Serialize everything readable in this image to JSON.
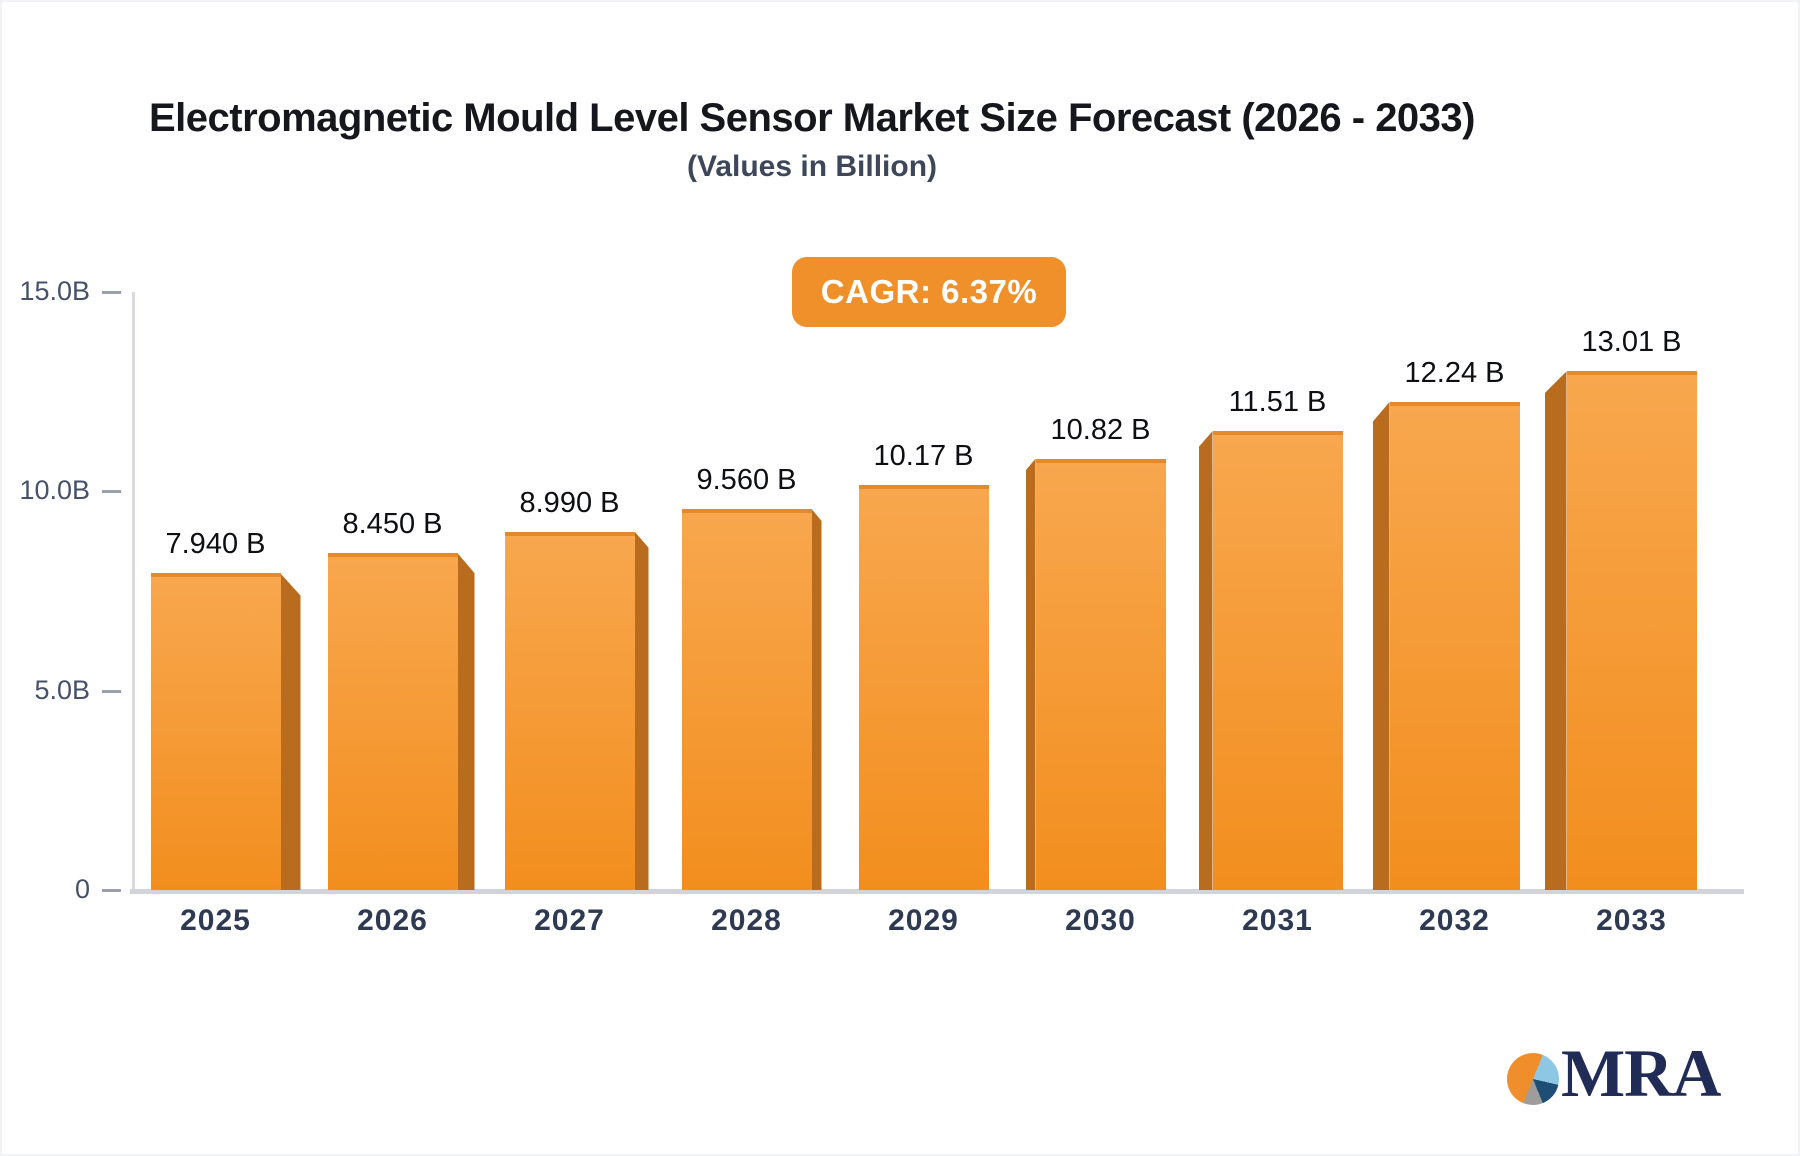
{
  "header": {
    "title": "Electromagnetic Mould Level Sensor Market Size Forecast (2026 - 2033)",
    "subtitle": "(Values in Billion)"
  },
  "badge": {
    "label": "CAGR: 6.37%",
    "color": "#f0902a"
  },
  "chart_data": {
    "type": "bar",
    "title": "Electromagnetic Mould Level Sensor Market Size Forecast (2026 - 2033)",
    "subtitle": "(Values in Billion)",
    "categories": [
      "2025",
      "2026",
      "2027",
      "2028",
      "2029",
      "2030",
      "2031",
      "2032",
      "2033"
    ],
    "values": [
      7.94,
      8.45,
      8.99,
      9.56,
      10.17,
      10.82,
      11.51,
      12.24,
      13.01
    ],
    "value_labels": [
      "7.940 B",
      "8.450 B",
      "8.990 B",
      "9.560 B",
      "10.17 B",
      "10.82 B",
      "11.51 B",
      "12.24 B",
      "13.01 B"
    ],
    "xlabel": "",
    "ylabel": "",
    "ylim": [
      0,
      15
    ],
    "yticks": [
      {
        "v": 0,
        "label": "0"
      },
      {
        "v": 5,
        "label": "5.0B"
      },
      {
        "v": 10,
        "label": "10.0B"
      },
      {
        "v": 15,
        "label": "15.0B"
      }
    ],
    "grid": false,
    "legend": false,
    "colors": {
      "bar_top": "#f8a74e",
      "bar_bottom": "#f28e1e",
      "bar_top_edge": "#e5892d",
      "bar_side": "#b96c1e"
    }
  },
  "logo": {
    "text": "MRA",
    "text_color": "#202c55",
    "pie_orange": "#ef8e2b",
    "pie_lightblue": "#8ec7e3",
    "pie_navy": "#1e4d75",
    "pie_gray": "#a19c9c"
  }
}
